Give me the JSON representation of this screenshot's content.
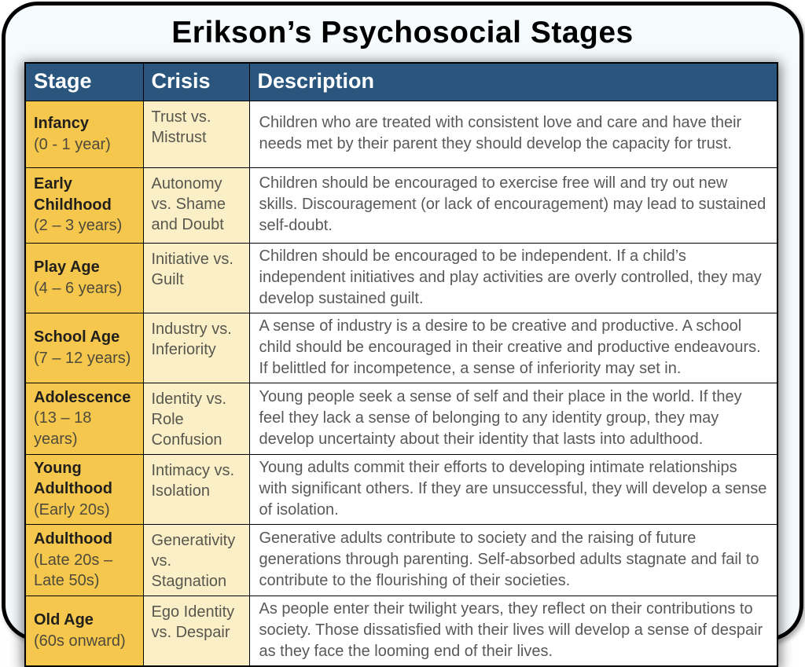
{
  "title": "Erikson’s Psychosocial Stages",
  "colors": {
    "header_bg": "#2a567e",
    "header_text": "#ffffff",
    "stage_bg": "#f6c74d",
    "crisis_bg": "#fbefc7",
    "description_bg": "#ffffff",
    "card_bg": "#f6fbfd",
    "border": "#000000",
    "description_text": "#595959"
  },
  "table": {
    "headers": {
      "stage": "Stage",
      "crisis": "Crisis",
      "description": "Description"
    },
    "rows": [
      {
        "stage_name": "Infancy",
        "stage_range": "(0 - 1 year)",
        "crisis": "Trust vs. Mistrust",
        "description": "Children who are treated with consistent love and care and have their needs met by their parent they should develop the capacity for trust."
      },
      {
        "stage_name": "Early Childhood",
        "stage_range": "(2 – 3 years)",
        "crisis": "Autonomy vs. Shame and Doubt",
        "description": "Children should be encouraged to exercise free will and try out new skills. Discouragement (or lack of encouragement) may lead to sustained self-doubt."
      },
      {
        "stage_name": "Play Age",
        "stage_range": "(4 – 6 years)",
        "crisis": "Initiative vs. Guilt",
        "description": "Children should be encouraged to be independent. If a child’s independent initiatives and play activities are overly controlled, they may develop sustained guilt."
      },
      {
        "stage_name": "School Age",
        "stage_range": "(7 – 12 years)",
        "crisis": "Industry vs. Inferiority",
        "description": "A sense of industry is a desire to be creative and productive. A school child should be encouraged in their creative and productive endeavours. If belittled for incompetence, a sense of inferiority may set in."
      },
      {
        "stage_name": "Adolescence",
        "stage_range": "(13 – 18 years)",
        "crisis": "Identity vs. Role Confusion",
        "description": "Young people seek a sense of self and their place in the world. If they feel they lack a sense of belonging to any identity group, they may develop uncertainty about their identity that lasts into adulthood."
      },
      {
        "stage_name": "Young Adulthood",
        "stage_range": "(Early 20s)",
        "crisis": "Intimacy vs. Isolation",
        "description": "Young adults commit their efforts to developing intimate relationships with significant others. If they are unsuccessful, they will develop a sense of isolation."
      },
      {
        "stage_name": "Adulthood",
        "stage_range": "(Late 20s – Late 50s)",
        "crisis": "Generativity vs. Stagnation",
        "description": "Generative adults contribute to society and the raising of future generations through parenting. Self-absorbed adults stagnate and fail to contribute to the flourishing of their societies."
      },
      {
        "stage_name": "Old Age",
        "stage_range": "(60s onward)",
        "crisis": "Ego Identity vs. Despair",
        "description": "As people enter their twilight years, they reflect on their contributions to society. Those dissatisfied with their lives will develop a sense of despair as they face the looming end of their lives."
      }
    ]
  }
}
